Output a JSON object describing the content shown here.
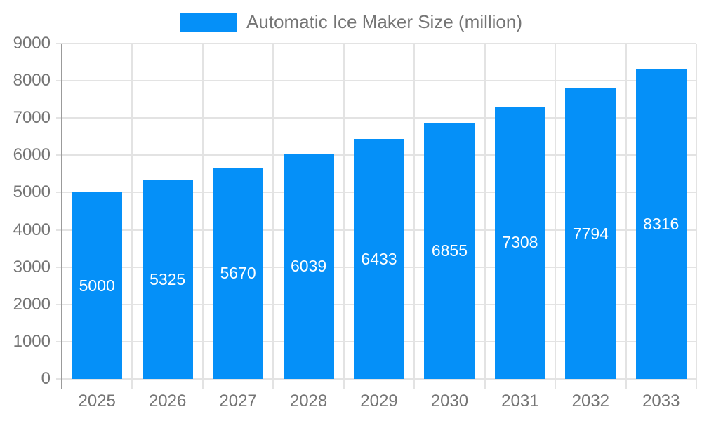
{
  "legend": {
    "label": "Automatic Ice Maker Size (million)"
  },
  "chart_data": {
    "type": "bar",
    "title": "Automatic Ice Maker Size (million)",
    "categories": [
      "2025",
      "2026",
      "2027",
      "2028",
      "2029",
      "2030",
      "2031",
      "2032",
      "2033"
    ],
    "series": [
      {
        "name": "Automatic Ice Maker Size (million)",
        "values": [
          5000,
          5325,
          5670,
          6039,
          6433,
          6855,
          7308,
          7794,
          8316
        ]
      }
    ],
    "value_labels_shown": true,
    "xlabel": "",
    "ylabel": "",
    "ylim": [
      0,
      9000
    ],
    "yticks": [
      0,
      1000,
      2000,
      3000,
      4000,
      5000,
      6000,
      7000,
      8000,
      9000
    ],
    "grid": true,
    "legend_position": "top-center"
  },
  "theme": {
    "bar_color": "#0590F8",
    "grid_color": "#E3E3E3",
    "axis_color": "#9B9B9B",
    "axis_text_color": "#757575",
    "value_label_color": "#FFFFFF",
    "background": "#FFFFFF"
  }
}
